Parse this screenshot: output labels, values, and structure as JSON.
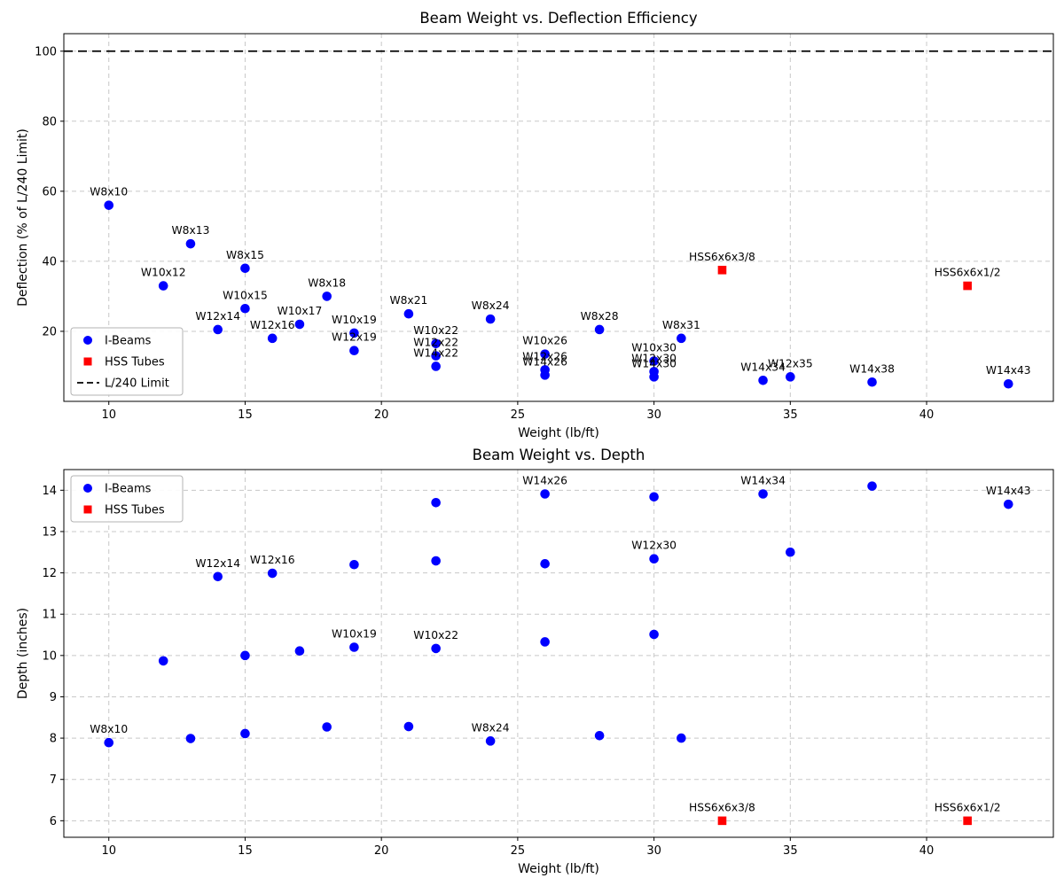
{
  "figure": {
    "background": "#ffffff",
    "ibeam_color": "#0000ff",
    "hss_color": "#ff0000",
    "limit_color": "#000000"
  },
  "chart_data": [
    {
      "type": "scatter",
      "title": "Beam Weight vs. Deflection Efficiency",
      "xlabel": "Weight (lb/ft)",
      "ylabel": "Deflection (% of L/240 Limit)",
      "xlim": [
        8.35,
        44.65
      ],
      "ylim": [
        0,
        105
      ],
      "xticks": [
        10,
        15,
        20,
        25,
        30,
        35,
        40
      ],
      "yticks": [
        20,
        40,
        60,
        80,
        100
      ],
      "grid": true,
      "legend_position": "lower-left",
      "reference_line": {
        "y": 100,
        "label": "L/240 Limit",
        "color": "#000000",
        "style": "dashed"
      },
      "series": [
        {
          "name": "I-Beams",
          "marker": "circle",
          "color": "#0000ff",
          "points": [
            {
              "label": "W8x10",
              "x": 10,
              "y": 56,
              "annotated": true
            },
            {
              "label": "W10x12",
              "x": 12,
              "y": 33,
              "annotated": true
            },
            {
              "label": "W8x13",
              "x": 13,
              "y": 45,
              "annotated": true
            },
            {
              "label": "W12x14",
              "x": 14,
              "y": 20.5,
              "annotated": true
            },
            {
              "label": "W8x15",
              "x": 15,
              "y": 38,
              "annotated": true
            },
            {
              "label": "W10x15",
              "x": 15,
              "y": 26.5,
              "annotated": true
            },
            {
              "label": "W12x16",
              "x": 16,
              "y": 18,
              "annotated": true
            },
            {
              "label": "W10x17",
              "x": 17,
              "y": 22,
              "annotated": true
            },
            {
              "label": "W8x18",
              "x": 18,
              "y": 30,
              "annotated": true
            },
            {
              "label": "W10x19",
              "x": 19,
              "y": 19.5,
              "annotated": true
            },
            {
              "label": "W12x19",
              "x": 19,
              "y": 14.5,
              "annotated": true
            },
            {
              "label": "W8x21",
              "x": 21,
              "y": 25,
              "annotated": true
            },
            {
              "label": "W10x22",
              "x": 22,
              "y": 16.5,
              "annotated": true
            },
            {
              "label": "W12x22",
              "x": 22,
              "y": 13,
              "annotated": true
            },
            {
              "label": "W14x22",
              "x": 22,
              "y": 10,
              "annotated": true
            },
            {
              "label": "W8x24",
              "x": 24,
              "y": 23.5,
              "annotated": true
            },
            {
              "label": "W10x26",
              "x": 26,
              "y": 13.5,
              "annotated": true
            },
            {
              "label": "W12x26",
              "x": 26,
              "y": 9,
              "annotated": true
            },
            {
              "label": "W14x26",
              "x": 26,
              "y": 7.5,
              "annotated": true
            },
            {
              "label": "W8x28",
              "x": 28,
              "y": 20.5,
              "annotated": true
            },
            {
              "label": "W10x30",
              "x": 30,
              "y": 11.5,
              "annotated": true
            },
            {
              "label": "W12x30",
              "x": 30,
              "y": 8.5,
              "annotated": true
            },
            {
              "label": "W14x30",
              "x": 30,
              "y": 7,
              "annotated": true
            },
            {
              "label": "W8x31",
              "x": 31,
              "y": 18,
              "annotated": true
            },
            {
              "label": "W14x34",
              "x": 34,
              "y": 6,
              "annotated": true
            },
            {
              "label": "W12x35",
              "x": 35,
              "y": 7,
              "annotated": true
            },
            {
              "label": "W14x38",
              "x": 38,
              "y": 5.5,
              "annotated": true
            },
            {
              "label": "W14x43",
              "x": 43,
              "y": 5,
              "annotated": true
            }
          ]
        },
        {
          "name": "HSS Tubes",
          "marker": "square",
          "color": "#ff0000",
          "points": [
            {
              "label": "HSS6x6x3/8",
              "x": 32.5,
              "y": 37.5,
              "annotated": true
            },
            {
              "label": "HSS6x6x1/2",
              "x": 41.5,
              "y": 33,
              "annotated": true
            }
          ]
        }
      ]
    },
    {
      "type": "scatter",
      "title": "Beam Weight vs. Depth",
      "xlabel": "Weight (lb/ft)",
      "ylabel": "Depth (inches)",
      "xlim": [
        8.35,
        44.65
      ],
      "ylim": [
        5.6,
        14.5
      ],
      "xticks": [
        10,
        15,
        20,
        25,
        30,
        35,
        40
      ],
      "yticks": [
        6,
        7,
        8,
        9,
        10,
        11,
        12,
        13,
        14
      ],
      "grid": true,
      "legend_position": "upper-left",
      "series": [
        {
          "name": "I-Beams",
          "marker": "circle",
          "color": "#0000ff",
          "points": [
            {
              "label": "W8x10",
              "x": 10,
              "y": 7.89,
              "annotated": true
            },
            {
              "label": "W10x12",
              "x": 12,
              "y": 9.87,
              "annotated": false
            },
            {
              "label": "W8x13",
              "x": 13,
              "y": 7.99,
              "annotated": false
            },
            {
              "label": "W12x14",
              "x": 14,
              "y": 11.91,
              "annotated": true
            },
            {
              "label": "W8x15",
              "x": 15,
              "y": 8.11,
              "annotated": false
            },
            {
              "label": "W10x15",
              "x": 15,
              "y": 10.0,
              "annotated": false
            },
            {
              "label": "W12x16",
              "x": 16,
              "y": 11.99,
              "annotated": true
            },
            {
              "label": "W10x17",
              "x": 17,
              "y": 10.11,
              "annotated": false
            },
            {
              "label": "W8x18",
              "x": 18,
              "y": 8.27,
              "annotated": false
            },
            {
              "label": "W10x19",
              "x": 19,
              "y": 10.2,
              "annotated": true
            },
            {
              "label": "W12x19",
              "x": 19,
              "y": 12.2,
              "annotated": false
            },
            {
              "label": "W8x21",
              "x": 21,
              "y": 8.28,
              "annotated": false
            },
            {
              "label": "W10x22",
              "x": 22,
              "y": 10.17,
              "annotated": true
            },
            {
              "label": "W12x22",
              "x": 22,
              "y": 12.29,
              "annotated": false
            },
            {
              "label": "W14x22",
              "x": 22,
              "y": 13.7,
              "annotated": false
            },
            {
              "label": "W8x24",
              "x": 24,
              "y": 7.93,
              "annotated": true
            },
            {
              "label": "W10x26",
              "x": 26,
              "y": 10.33,
              "annotated": false
            },
            {
              "label": "W12x26",
              "x": 26,
              "y": 12.22,
              "annotated": false
            },
            {
              "label": "W14x26",
              "x": 26,
              "y": 13.91,
              "annotated": true
            },
            {
              "label": "W8x28",
              "x": 28,
              "y": 8.06,
              "annotated": false
            },
            {
              "label": "W10x30",
              "x": 30,
              "y": 10.51,
              "annotated": false
            },
            {
              "label": "W12x30",
              "x": 30,
              "y": 12.34,
              "annotated": true
            },
            {
              "label": "W14x30",
              "x": 30,
              "y": 13.84,
              "annotated": false
            },
            {
              "label": "W8x31",
              "x": 31,
              "y": 8.0,
              "annotated": false
            },
            {
              "label": "W14x34",
              "x": 34,
              "y": 13.91,
              "annotated": true
            },
            {
              "label": "W12x35",
              "x": 35,
              "y": 12.5,
              "annotated": false
            },
            {
              "label": "W14x38",
              "x": 38,
              "y": 14.1,
              "annotated": false
            },
            {
              "label": "W14x43",
              "x": 43,
              "y": 13.66,
              "annotated": true
            }
          ]
        },
        {
          "name": "HSS Tubes",
          "marker": "square",
          "color": "#ff0000",
          "points": [
            {
              "label": "HSS6x6x3/8",
              "x": 32.5,
              "y": 6.0,
              "annotated": true
            },
            {
              "label": "HSS6x6x1/2",
              "x": 41.5,
              "y": 6.0,
              "annotated": true
            }
          ]
        }
      ]
    }
  ]
}
